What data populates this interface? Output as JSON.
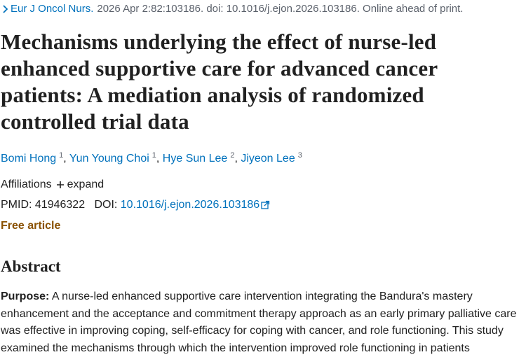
{
  "citation": {
    "journal": "Eur J Oncol Nurs.",
    "details": "2026 Apr 2:82:103186. doi: 10.1016/j.ejon.2026.103186. Online ahead of print."
  },
  "title": "Mechanisms underlying the effect of nurse-led enhanced supportive care for advanced cancer patients: A mediation analysis of randomized controlled trial data",
  "authors": [
    {
      "name": "Bomi Hong",
      "affiliation": "1"
    },
    {
      "name": "Yun Young Choi",
      "affiliation": "1"
    },
    {
      "name": "Hye Sun Lee",
      "affiliation": "2"
    },
    {
      "name": "Jiyeon Lee",
      "affiliation": "3"
    }
  ],
  "affiliations": {
    "label": "Affiliations",
    "toggle": "expand"
  },
  "identifiers": {
    "pmid_label": "PMID:",
    "pmid": "41946322",
    "doi_label": "DOI:",
    "doi": "10.1016/j.ejon.2026.103186"
  },
  "free_article": "Free article",
  "abstract": {
    "heading": "Abstract",
    "sections": [
      {
        "label": "Purpose:",
        "text": "A nurse-led enhanced supportive care intervention integrating the Bandura's mastery enhancement and the acceptance and commitment therapy approach as an early primary palliative care was effective in improving coping, self-efficacy for coping with cancer, and role functioning. This study examined the mechanisms through which the intervention improved role functioning in patients"
      }
    ]
  }
}
